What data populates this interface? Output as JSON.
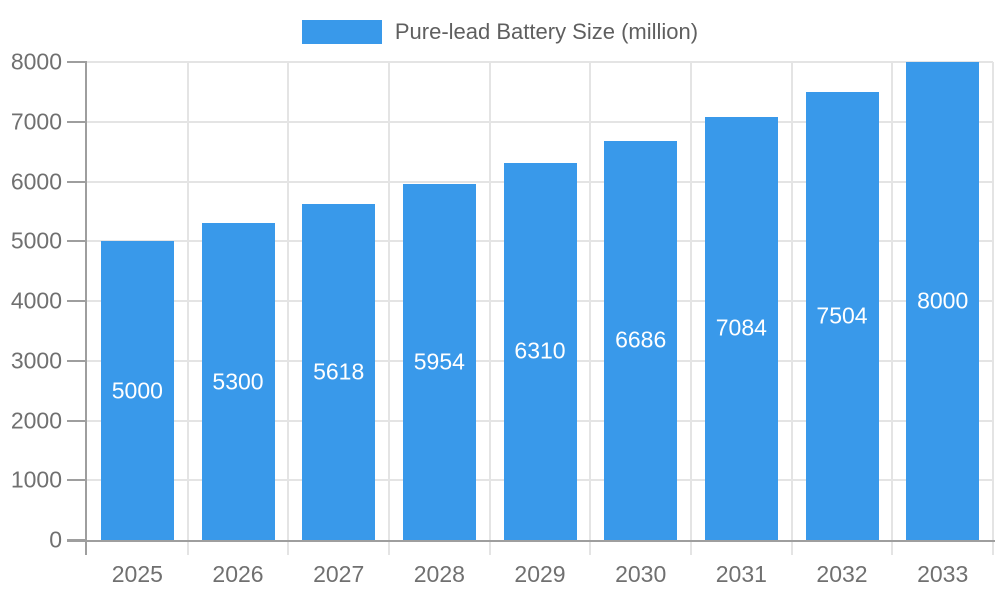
{
  "chart_data": {
    "type": "bar",
    "title": "",
    "legend": "Pure-lead Battery Size (million)",
    "legend_position": "top",
    "categories": [
      "2025",
      "2026",
      "2027",
      "2028",
      "2029",
      "2030",
      "2031",
      "2032",
      "2033"
    ],
    "series": [
      {
        "name": "Pure-lead Battery Size (million)",
        "values": [
          5000,
          5300,
          5618,
          5954,
          6310,
          6686,
          7084,
          7504,
          8000
        ]
      }
    ],
    "value_labels_shown": true,
    "xlabel": "",
    "ylabel": "",
    "ylim": [
      0,
      8000
    ],
    "ytick_interval": 1000,
    "ytick_labels": [
      "0",
      "1000",
      "2000",
      "3000",
      "4000",
      "5000",
      "6000",
      "7000",
      "8000"
    ],
    "grid": true,
    "colors": {
      "bar": "#3999EA",
      "bar_value_text": "#FFFFFF",
      "axis_line": "#9E9E9E",
      "gridline": "#E4E4E4",
      "boundary_tick": "#D8D8D8",
      "tick_label_text": "#707070",
      "legend_text": "#5F5F5F"
    }
  }
}
